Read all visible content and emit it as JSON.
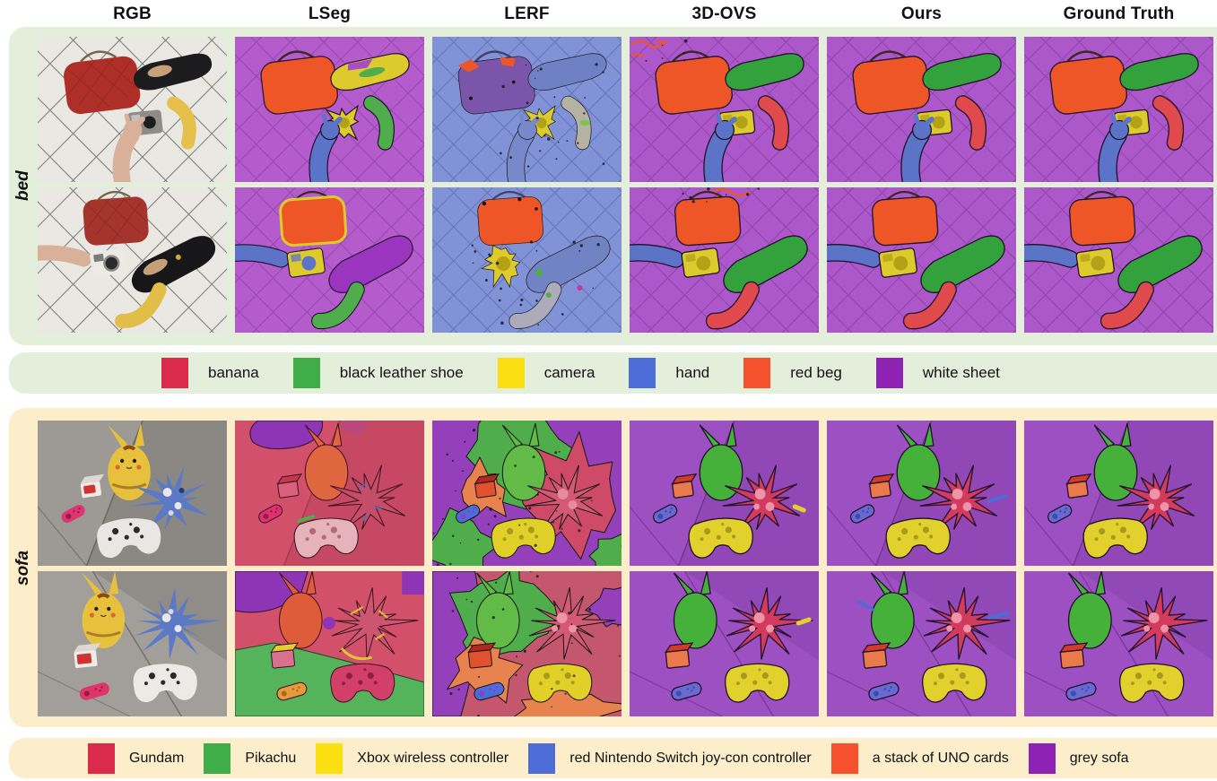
{
  "figure": {
    "column_headers": [
      "RGB",
      "LSeg",
      "LERF",
      "3D-OVS",
      "Ours",
      "Ground Truth"
    ],
    "groups": [
      {
        "row_label": "bed",
        "panel_color": "#e3efdb",
        "legend": [
          {
            "label": "banana",
            "color": "#da2b4d"
          },
          {
            "label": "black leather shoe",
            "color": "#3fae49"
          },
          {
            "label": "camera",
            "color": "#fbdf11"
          },
          {
            "label": "hand",
            "color": "#4d6ed7"
          },
          {
            "label": "red beg",
            "color": "#f4512c"
          },
          {
            "label": "white sheet",
            "color": "#8e22b4"
          }
        ]
      },
      {
        "row_label": "sofa",
        "panel_color": "#fdeecb",
        "legend": [
          {
            "label": "Gundam",
            "color": "#da2b4d"
          },
          {
            "label": "Pikachu",
            "color": "#3fae49"
          },
          {
            "label": "Xbox wireless controller",
            "color": "#fbdf11"
          },
          {
            "label": "red Nintendo Switch joy-con controller",
            "color": "#4d6ed7"
          },
          {
            "label": "a stack of UNO cards",
            "color": "#f4512c"
          },
          {
            "label": "grey sofa",
            "color": "#8e22b4"
          }
        ]
      }
    ]
  }
}
